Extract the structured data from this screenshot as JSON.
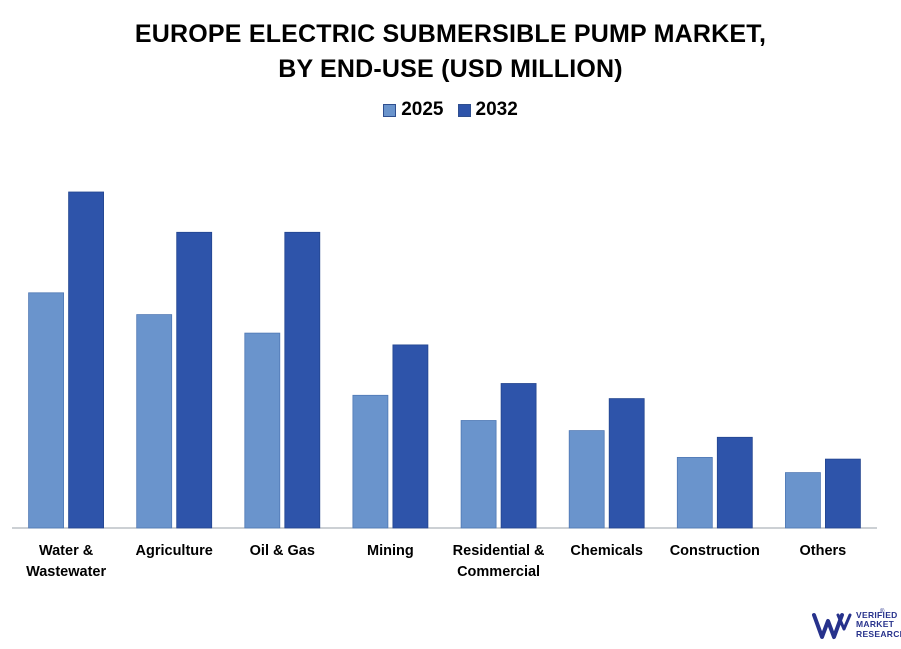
{
  "title_line1": "EUROPE ELECTRIC SUBMERSIBLE PUMP MARKET,",
  "title_line2": "BY END-USE (USD MILLION)",
  "colors": {
    "s2025": "#6a94cc",
    "s2032": "#2e54aa",
    "axis": "#9aa0a8",
    "logo": "#27328c"
  },
  "chart_data": {
    "type": "bar",
    "categories": [
      [
        "Water &",
        "Wastewater"
      ],
      [
        "Agriculture"
      ],
      [
        "Oil & Gas"
      ],
      [
        "Mining"
      ],
      [
        "Residential &",
        "Commercial"
      ],
      [
        "Chemicals"
      ],
      [
        "Construction"
      ],
      [
        "Others"
      ]
    ],
    "series": [
      {
        "name": "2025",
        "values": [
          70,
          63.5,
          58,
          39.5,
          32,
          29,
          21,
          16.5
        ]
      },
      {
        "name": "2032",
        "values": [
          100,
          88,
          88,
          54.5,
          43,
          38.5,
          27,
          20.5
        ]
      }
    ],
    "ylim": [
      0,
      100
    ],
    "grid": false,
    "legend_position": "top-center",
    "xlabel": "",
    "ylabel": ""
  },
  "logo": {
    "line1": "VERIFIED",
    "line2": "MARKET",
    "line3": "RESEARCH",
    "reg": "®"
  }
}
